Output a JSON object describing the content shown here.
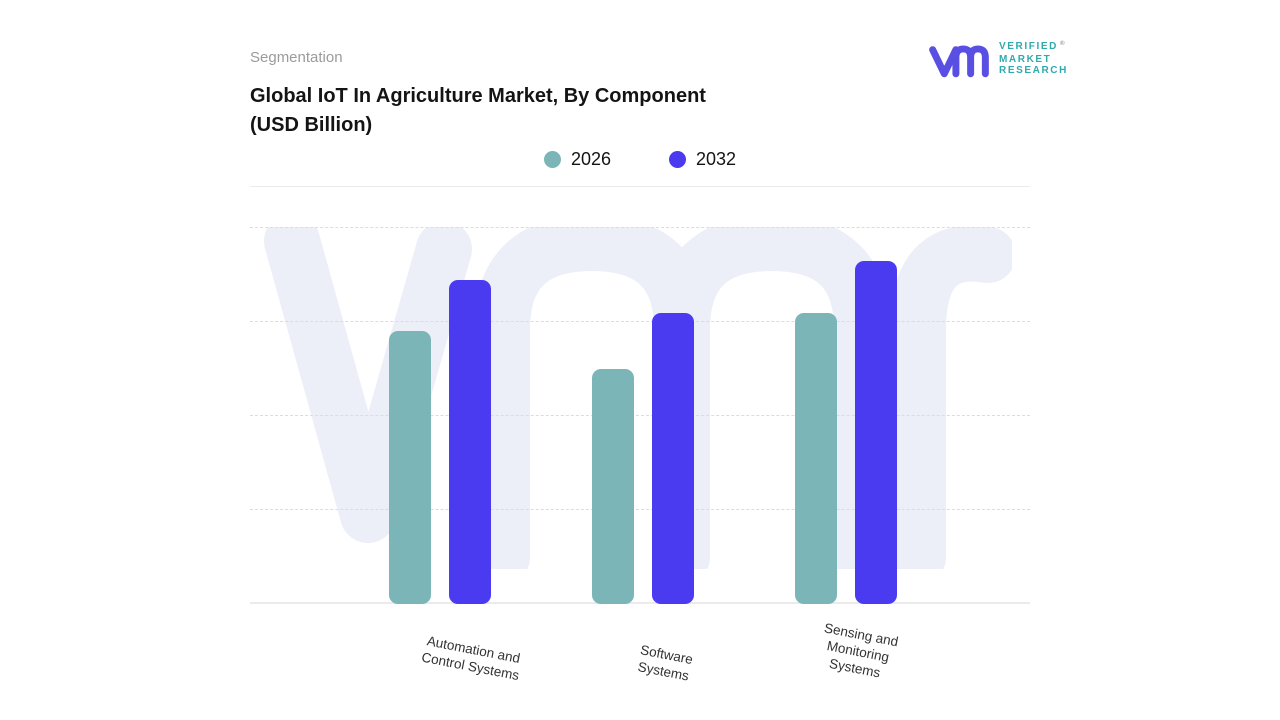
{
  "header": {
    "eyebrow": "Segmentation",
    "title_lines": [
      "Global IoT In Agriculture Market, By Component",
      "(USD Billion)"
    ]
  },
  "logo": {
    "brand_lines": [
      "VERIFIED",
      "MARKET",
      "RESEARCH"
    ],
    "registered_mark": "®",
    "mark_color": "#5a4fe3",
    "text_color": "#2faaad"
  },
  "chart_data": {
    "type": "bar",
    "title": "Global IoT In Agriculture Market, By Component (USD Billion)",
    "value_unit": "USD Billion",
    "categories": [
      "Automation and Control Systems",
      "Software Systems",
      "Sensing and Monitoring Systems"
    ],
    "category_label_lines": [
      [
        "Automation and",
        "Control Systems"
      ],
      [
        "Software",
        "Systems"
      ],
      [
        "Sensing and",
        "Monitoring",
        "Systems"
      ]
    ],
    "series": [
      {
        "name": "2026",
        "color": "#7bb5b8",
        "values": [
          2.9,
          2.5,
          3.1
        ]
      },
      {
        "name": "2032",
        "color": "#4a3af0",
        "values": [
          3.45,
          3.1,
          3.65
        ]
      }
    ],
    "ylim": [
      0,
      4
    ],
    "xlabel": "",
    "ylabel": "",
    "y_tick_labels_visible": false,
    "gridlines": {
      "style": "dashed",
      "orientation": "horizontal",
      "count": 4
    },
    "legend_position": "top-center",
    "watermark": "vmr",
    "watermark_color": "#eceef8",
    "baseline_color": "#ebebeb"
  }
}
